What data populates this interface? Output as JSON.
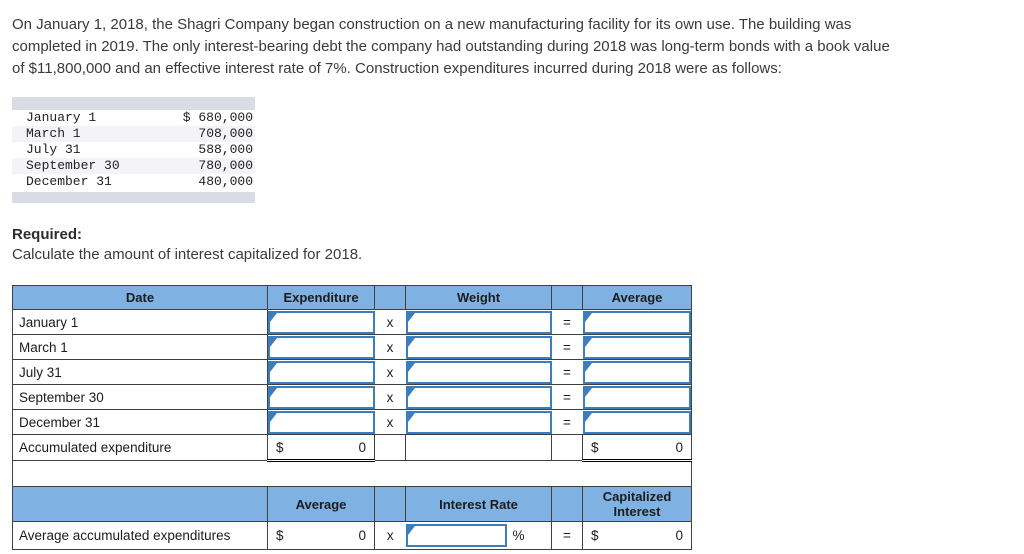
{
  "intro": {
    "lines": [
      "On January 1, 2018, the Shagri Company began construction on a new manufacturing facility for its own use. The building was",
      "completed in 2019. The only interest-bearing debt the company had outstanding during 2018 was long-term bonds with a book value",
      "of $11,800,000 and an effective interest rate of 7%. Construction expenditures incurred during 2018 were as follows:"
    ]
  },
  "expenditure_table": {
    "rows": [
      {
        "date": "January 1",
        "amount": "$ 680,000"
      },
      {
        "date": "March 1",
        "amount": "708,000"
      },
      {
        "date": "July 31",
        "amount": "588,000"
      },
      {
        "date": "September 30",
        "amount": "780,000"
      },
      {
        "date": "December 31",
        "amount": "480,000"
      }
    ]
  },
  "required": {
    "label": "Required:",
    "text": "Calculate the amount of interest capitalized for 2018."
  },
  "worksheet": {
    "header": {
      "date": "Date",
      "expenditure": "Expenditure",
      "weight": "Weight",
      "average": "Average"
    },
    "multiply_symbol": "x",
    "equals_symbol": "=",
    "currency_symbol": "$",
    "zero_value": "0",
    "rows": [
      {
        "label": "January 1"
      },
      {
        "label": "March 1"
      },
      {
        "label": "July 31"
      },
      {
        "label": "September 30"
      },
      {
        "label": "December 31"
      }
    ],
    "total_row": {
      "label": "Accumulated expenditure",
      "expenditure_value": "0",
      "average_value": "0"
    },
    "second_header": {
      "average": "Average",
      "interest_rate": "Interest Rate",
      "capitalized_interest": "Capitalized Interest"
    },
    "bottom_row": {
      "label": "Average accumulated expenditures",
      "average_value": "0",
      "percent_sign": "%",
      "capitalized_value": "0"
    }
  },
  "colors": {
    "header_blue": "#7fb2e3",
    "input_border_blue": "#3c7dbe",
    "band_gray": "#d9dce5",
    "alt_row_gray": "#f4f4f6",
    "grid_border": "#404040"
  }
}
